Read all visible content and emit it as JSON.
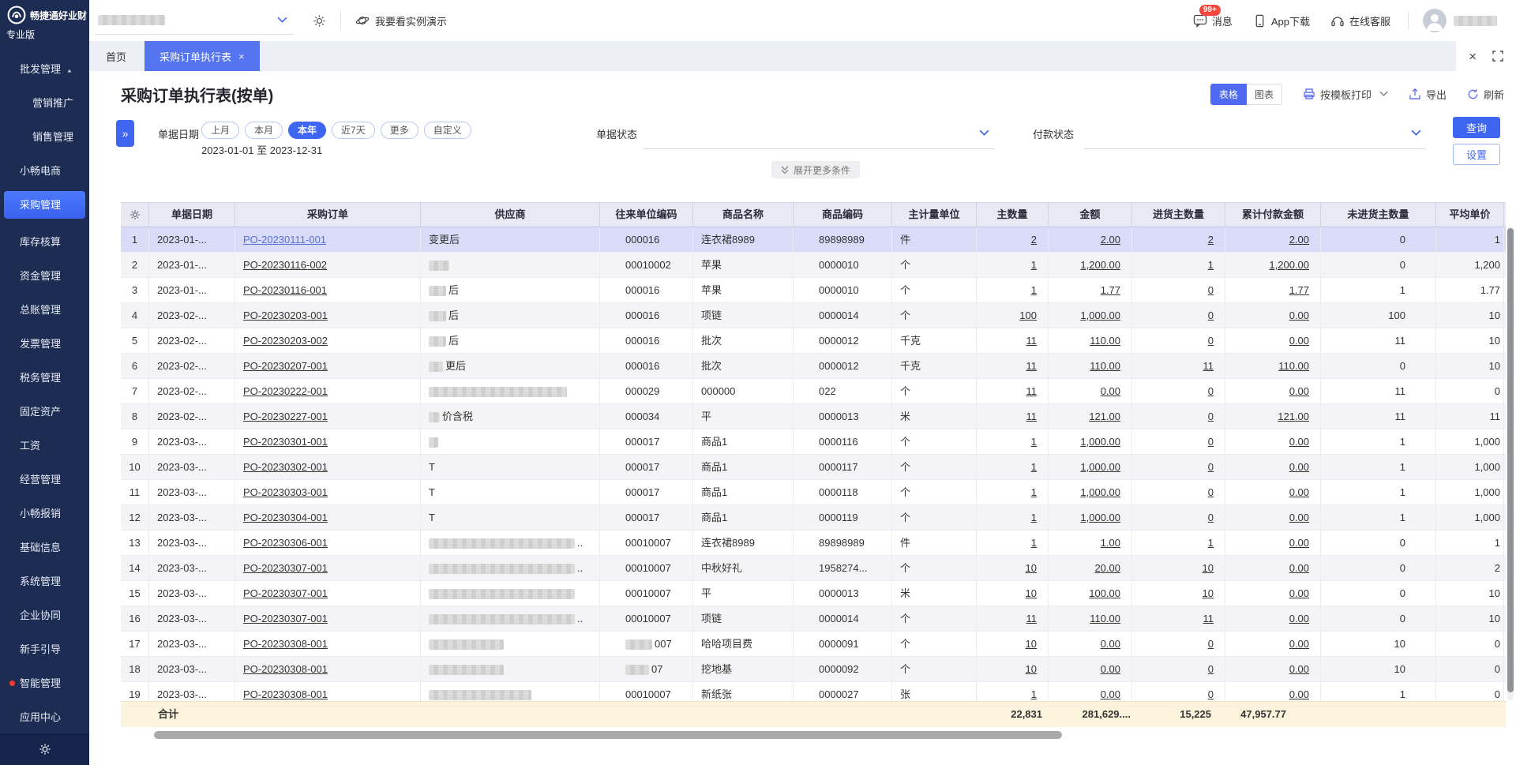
{
  "topbar": {
    "logo_title": "畅捷通好业财",
    "logo_subtitle": "专业版",
    "demo_link": "我要看实例演示",
    "messages_label": "消息",
    "messages_badge": "99+",
    "app_download_label": "App下载",
    "support_label": "在线客服"
  },
  "tabs": {
    "home": "首页",
    "current": "采购订单执行表"
  },
  "sidebar": {
    "items": [
      {
        "label": "批发管理",
        "expanded": true
      },
      {
        "label": "营销推广",
        "sub": true
      },
      {
        "label": "销售管理",
        "sub": true
      },
      {
        "label": "小畅电商"
      },
      {
        "label": "采购管理",
        "active": true
      },
      {
        "label": "库存核算"
      },
      {
        "label": "资金管理"
      },
      {
        "label": "总账管理"
      },
      {
        "label": "发票管理"
      },
      {
        "label": "税务管理"
      },
      {
        "label": "固定资产"
      },
      {
        "label": "工资"
      },
      {
        "label": "经营管理"
      },
      {
        "label": "小畅报销"
      },
      {
        "label": "基础信息"
      },
      {
        "label": "系统管理"
      },
      {
        "label": "企业协同"
      },
      {
        "label": "新手引导"
      },
      {
        "label": "智能管理",
        "dot": true
      },
      {
        "label": "应用中心"
      }
    ]
  },
  "page": {
    "title": "采购订单执行表(按单)",
    "view_table": "表格",
    "view_chart": "图表",
    "print_label": "按模板打印",
    "export_label": "导出",
    "refresh_label": "刷新"
  },
  "filters": {
    "date_label": "单据日期",
    "date_pills": [
      "上月",
      "本月",
      "本年",
      "近7天",
      "更多",
      "自定义"
    ],
    "date_active_pill": "本年",
    "date_range": "2023-01-01 至 2023-12-31",
    "status_label": "单据状态",
    "payment_label": "付款状态",
    "query_label": "查询",
    "settings_label": "设置",
    "expand_label": "展开更多条件"
  },
  "table": {
    "headers": [
      "单据日期",
      "采购订单",
      "供应商",
      "往来单位编码",
      "商品名称",
      "商品编码",
      "主计量单位",
      "主数量",
      "金额",
      "进货主数量",
      "累计付款金额",
      "未进货主数量",
      "平均单价"
    ],
    "rows": [
      {
        "no": "1",
        "date": "2023-01-...",
        "po": "PO-20230111-001",
        "supplier": {
          "blur": 0,
          "text": "变更后"
        },
        "partner_code": "000016",
        "product": "连衣裙8989",
        "product_code": "89898989",
        "unit": "件",
        "qty": "2",
        "amount": "2.00",
        "in_qty": "2",
        "paid": "2.00",
        "not_in_qty": "0",
        "avg_price": "1",
        "selected": true
      },
      {
        "no": "2",
        "date": "2023-01-...",
        "po": "PO-20230116-002",
        "supplier": {
          "blur": 26,
          "text": ""
        },
        "partner_code": "00010002",
        "product": "苹果",
        "product_code": "0000010",
        "unit": "个",
        "qty": "1",
        "amount": "1,200.00",
        "in_qty": "1",
        "paid": "1,200.00",
        "not_in_qty": "0",
        "avg_price": "1,200"
      },
      {
        "no": "3",
        "date": "2023-01-...",
        "po": "PO-20230116-001",
        "supplier": {
          "blur": 22,
          "text": "后"
        },
        "partner_code": "000016",
        "product": "苹果",
        "product_code": "0000010",
        "unit": "个",
        "qty": "1",
        "amount": "1.77",
        "in_qty": "0",
        "paid": "1.77",
        "not_in_qty": "1",
        "avg_price": "1.77"
      },
      {
        "no": "4",
        "date": "2023-02-...",
        "po": "PO-20230203-001",
        "supplier": {
          "blur": 22,
          "text": "后"
        },
        "partner_code": "000016",
        "product": "项链",
        "product_code": "0000014",
        "unit": "个",
        "qty": "100",
        "amount": "1,000.00",
        "in_qty": "0",
        "paid": "0.00",
        "not_in_qty": "100",
        "avg_price": "10"
      },
      {
        "no": "5",
        "date": "2023-02-...",
        "po": "PO-20230203-002",
        "supplier": {
          "blur": 22,
          "text": "后"
        },
        "partner_code": "000016",
        "product": "批次",
        "product_code": "0000012",
        "unit": "千克",
        "qty": "11",
        "amount": "110.00",
        "in_qty": "0",
        "paid": "0.00",
        "not_in_qty": "11",
        "avg_price": "10"
      },
      {
        "no": "6",
        "date": "2023-02-...",
        "po": "PO-20230207-001",
        "supplier": {
          "blur": 18,
          "text": "更后"
        },
        "partner_code": "000016",
        "product": "批次",
        "product_code": "0000012",
        "unit": "千克",
        "qty": "11",
        "amount": "110.00",
        "in_qty": "11",
        "paid": "110.00",
        "not_in_qty": "0",
        "avg_price": "10"
      },
      {
        "no": "7",
        "date": "2023-02-...",
        "po": "PO-20230222-001",
        "supplier": {
          "blur": 175,
          "text": ""
        },
        "partner_code": "000029",
        "product": "000000",
        "product_code": "022",
        "unit": "个",
        "qty": "11",
        "amount": "0.00",
        "in_qty": "0",
        "paid": "0.00",
        "not_in_qty": "11",
        "avg_price": "0"
      },
      {
        "no": "8",
        "date": "2023-02-...",
        "po": "PO-20230227-001",
        "supplier": {
          "blur": 14,
          "text": "价含税"
        },
        "partner_code": "000034",
        "product": "平",
        "product_code": "0000013",
        "unit": "米",
        "qty": "11",
        "amount": "121.00",
        "in_qty": "0",
        "paid": "121.00",
        "not_in_qty": "11",
        "avg_price": "11"
      },
      {
        "no": "9",
        "date": "2023-03-...",
        "po": "PO-20230301-001",
        "supplier": {
          "blur": 12,
          "text": ""
        },
        "partner_code": "000017",
        "product": "商品1",
        "product_code": "0000116",
        "unit": "个",
        "qty": "1",
        "amount": "1,000.00",
        "in_qty": "0",
        "paid": "0.00",
        "not_in_qty": "1",
        "avg_price": "1,000"
      },
      {
        "no": "10",
        "date": "2023-03-...",
        "po": "PO-20230302-001",
        "supplier": {
          "blur": 0,
          "text": "T"
        },
        "partner_code": "000017",
        "product": "商品1",
        "product_code": "0000117",
        "unit": "个",
        "qty": "1",
        "amount": "1,000.00",
        "in_qty": "0",
        "paid": "0.00",
        "not_in_qty": "1",
        "avg_price": "1,000"
      },
      {
        "no": "11",
        "date": "2023-03-...",
        "po": "PO-20230303-001",
        "supplier": {
          "blur": 0,
          "text": "T"
        },
        "partner_code": "000017",
        "product": "商品1",
        "product_code": "0000118",
        "unit": "个",
        "qty": "1",
        "amount": "1,000.00",
        "in_qty": "0",
        "paid": "0.00",
        "not_in_qty": "1",
        "avg_price": "1,000"
      },
      {
        "no": "12",
        "date": "2023-03-...",
        "po": "PO-20230304-001",
        "supplier": {
          "blur": 0,
          "text": "T"
        },
        "partner_code": "000017",
        "product": "商品1",
        "product_code": "0000119",
        "unit": "个",
        "qty": "1",
        "amount": "1,000.00",
        "in_qty": "0",
        "paid": "0.00",
        "not_in_qty": "1",
        "avg_price": "1,000"
      },
      {
        "no": "13",
        "date": "2023-03-...",
        "po": "PO-20230306-001",
        "supplier": {
          "blur": 185,
          "text": ".."
        },
        "partner_code": "00010007",
        "product": "连衣裙8989",
        "product_code": "89898989",
        "unit": "件",
        "qty": "1",
        "amount": "1.00",
        "in_qty": "1",
        "paid": "0.00",
        "not_in_qty": "0",
        "avg_price": "1"
      },
      {
        "no": "14",
        "date": "2023-03-...",
        "po": "PO-20230307-001",
        "supplier": {
          "blur": 185,
          "text": ".."
        },
        "partner_code": "00010007",
        "product": "中秋好礼",
        "product_code": "1958274...",
        "unit": "个",
        "qty": "10",
        "amount": "20.00",
        "in_qty": "10",
        "paid": "0.00",
        "not_in_qty": "0",
        "avg_price": "2"
      },
      {
        "no": "15",
        "date": "2023-03-...",
        "po": "PO-20230307-001",
        "supplier": {
          "blur": 185,
          "text": ""
        },
        "partner_code": "00010007",
        "product": "平",
        "product_code": "0000013",
        "unit": "米",
        "qty": "10",
        "amount": "100.00",
        "in_qty": "10",
        "paid": "0.00",
        "not_in_qty": "0",
        "avg_price": "10"
      },
      {
        "no": "16",
        "date": "2023-03-...",
        "po": "PO-20230307-001",
        "supplier": {
          "blur": 185,
          "text": ".."
        },
        "partner_code": "00010007",
        "product": "项链",
        "product_code": "0000014",
        "unit": "个",
        "qty": "11",
        "amount": "110.00",
        "in_qty": "11",
        "paid": "0.00",
        "not_in_qty": "0",
        "avg_price": "10"
      },
      {
        "no": "17",
        "date": "2023-03-...",
        "po": "PO-20230308-001",
        "supplier": {
          "blur": 95,
          "text": ""
        },
        "partner_code": {
          "blur": 34,
          "text": "007"
        },
        "product": "哈哈项目费",
        "product_code": "0000091",
        "unit": "个",
        "qty": "10",
        "amount": "0.00",
        "in_qty": "0",
        "paid": "0.00",
        "not_in_qty": "10",
        "avg_price": "0"
      },
      {
        "no": "18",
        "date": "2023-03-...",
        "po": "PO-20230308-001",
        "supplier": {
          "blur": 95,
          "text": ""
        },
        "partner_code": {
          "blur": 30,
          "text": "07"
        },
        "product": "挖地基",
        "product_code": "0000092",
        "unit": "个",
        "qty": "10",
        "amount": "0.00",
        "in_qty": "0",
        "paid": "0.00",
        "not_in_qty": "10",
        "avg_price": "0"
      },
      {
        "no": "19",
        "date": "2023-03-...",
        "po": "PO-20230308-001",
        "supplier": {
          "blur": 130,
          "text": ""
        },
        "partner_code": "00010007",
        "product": "新纸张",
        "product_code": "0000027",
        "unit": "张",
        "qty": "1",
        "amount": "0.00",
        "in_qty": "0",
        "paid": "0.00",
        "not_in_qty": "1",
        "avg_price": "0"
      }
    ],
    "total": {
      "label": "合计",
      "main_qty": "22,831",
      "amount": "281,629....",
      "in_qty": "15,225",
      "paid": "47,957.77"
    }
  }
}
